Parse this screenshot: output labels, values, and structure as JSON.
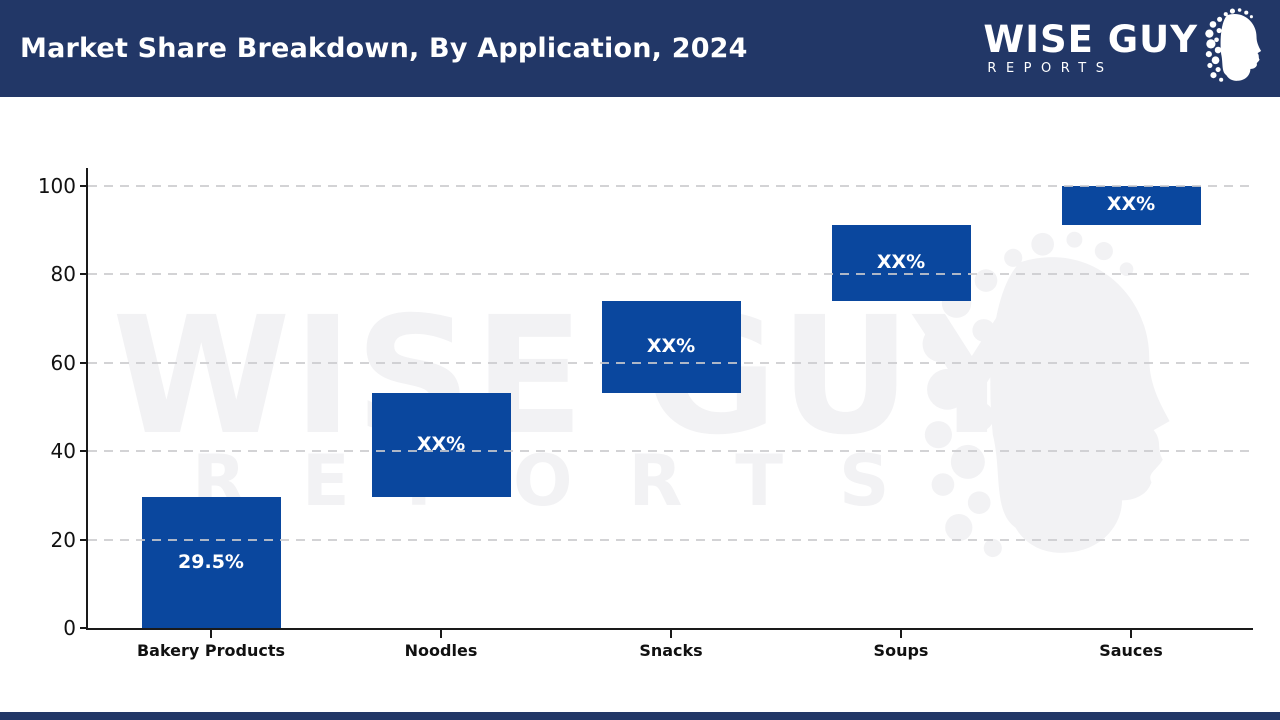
{
  "header": {
    "title": "Market Share Breakdown, By Application, 2024",
    "logo": {
      "line1": "WISE GUY",
      "line2": "REPORTS"
    }
  },
  "watermark": {
    "line1": "WISE GUY",
    "line2": "REPORTS"
  },
  "colors": {
    "header_bg": "#223767",
    "footer_bg": "#223767",
    "bar": "#0a479e",
    "bar_label": "#ffffff",
    "axis": "#1a1a1a",
    "grid": "#d9d9d9",
    "watermark": "#f2f2f4"
  },
  "chart_data": {
    "type": "bar",
    "variant": "floating-waterfall",
    "title": "Market Share Breakdown, By Application, 2024",
    "categories": [
      "Bakery Products",
      "Noodles",
      "Snacks",
      "Soups",
      "Sauces"
    ],
    "segments": [
      {
        "category": "Bakery Products",
        "start": 0,
        "end": 29.5,
        "label": "29.5%"
      },
      {
        "category": "Noodles",
        "start": 29.5,
        "end": 53,
        "label": "XX%"
      },
      {
        "category": "Snacks",
        "start": 53,
        "end": 74,
        "label": "XX%"
      },
      {
        "category": "Soups",
        "start": 74,
        "end": 91,
        "label": "XX%"
      },
      {
        "category": "Sauces",
        "start": 91,
        "end": 100,
        "label": "XX%"
      }
    ],
    "yticks": [
      0,
      20,
      40,
      60,
      80,
      100
    ],
    "ylim": [
      0,
      104
    ],
    "xlabel": "",
    "ylabel": "",
    "grid": "horizontal-dashed",
    "legend": "none",
    "value_unit": "%"
  }
}
